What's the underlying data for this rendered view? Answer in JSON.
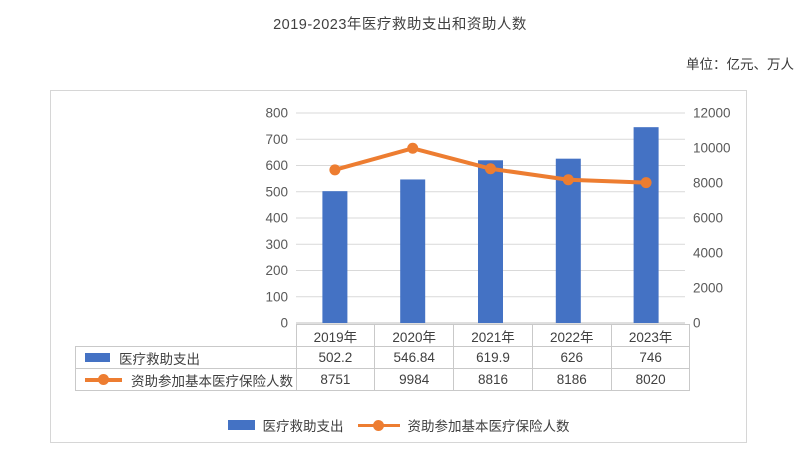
{
  "title": "2019-2023年医疗救助支出和资助人数",
  "unit_label": "单位：亿元、万人",
  "colors": {
    "bar": "#4472c4",
    "line": "#ed7d31",
    "gridline": "#d9d9d9",
    "axis_line": "#bfbfbf",
    "axis_text": "#595959",
    "table_border": "#c9c9c9",
    "text": "#404040"
  },
  "chart_data": {
    "type": "bar",
    "subtype": "combo-bar-line-dual-axis",
    "title": "2019-2023年医疗救助支出和资助人数",
    "categories": [
      "2019年",
      "2020年",
      "2021年",
      "2022年",
      "2023年"
    ],
    "series": [
      {
        "name": "医疗救助支出",
        "type": "bar",
        "axis": "left",
        "color": "#4472c4",
        "values": [
          502.2,
          546.84,
          619.9,
          626,
          746
        ]
      },
      {
        "name": "资助参加基本医疗保险人数",
        "type": "line",
        "axis": "right",
        "color": "#ed7d31",
        "values": [
          8751,
          9984,
          8816,
          8186,
          8020
        ]
      }
    ],
    "left_axis": {
      "min": 0,
      "max": 800,
      "step": 100,
      "tick_labels": [
        "0",
        "100",
        "200",
        "300",
        "400",
        "500",
        "600",
        "700",
        "800"
      ]
    },
    "right_axis": {
      "min": 0,
      "max": 12000,
      "step": 2000,
      "tick_labels": [
        "0",
        "2000",
        "4000",
        "6000",
        "8000",
        "10000",
        "12000"
      ]
    },
    "grid": true,
    "legend_position": "bottom"
  },
  "table": {
    "corner": "",
    "columns": [
      "2019年",
      "2020年",
      "2021年",
      "2022年",
      "2023年"
    ],
    "rows": [
      {
        "marker": "bar",
        "name": "医疗救助支出",
        "values": [
          "502.2",
          "546.84",
          "619.9",
          "626",
          "746"
        ]
      },
      {
        "marker": "line",
        "name": "资助参加基本医疗保险人数",
        "values": [
          "8751",
          "9984",
          "8816",
          "8186",
          "8020"
        ]
      }
    ]
  },
  "legend": {
    "items": [
      {
        "marker": "bar",
        "label": "医疗救助支出",
        "color": "#4472c4"
      },
      {
        "marker": "line",
        "label": "资助参加基本医疗保险人数",
        "color": "#ed7d31"
      }
    ]
  }
}
